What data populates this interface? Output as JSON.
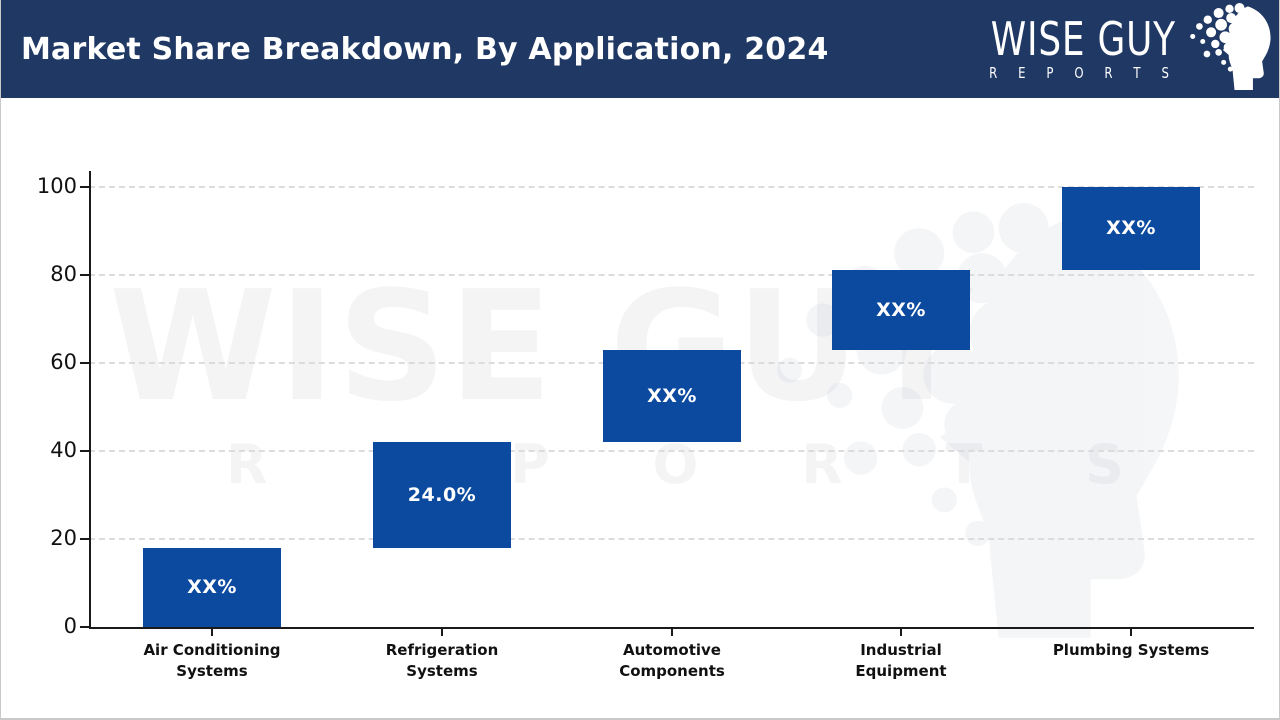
{
  "header": {
    "title": "Market Share Breakdown, By Application, 2024",
    "logo": {
      "name": "WISE GUY",
      "sub": "R E P O R T S"
    }
  },
  "watermark": {
    "line1": "WISE GUY",
    "line2": "R E P O R T S"
  },
  "colors": {
    "header_bg": "#1f3864",
    "bar": "#0b4a9e",
    "bar_label": "#ffffff",
    "axis": "#1a1a1a",
    "grid": "#dcdcdc",
    "page_bg": "#ffffff"
  },
  "chart_data": {
    "type": "bar",
    "subtype": "floating-segment-waterfall",
    "title": "Market Share Breakdown, By Application, 2024",
    "unit": "%",
    "ylim": [
      0,
      100
    ],
    "yticks": [
      0,
      20,
      40,
      60,
      80,
      100
    ],
    "grid": "horizontal dashed at yticks",
    "legend": "none",
    "bar_color": "#0b4a9e",
    "categories": [
      "Air Conditioning Systems",
      "Refrigeration Systems",
      "Automotive Components",
      "Industrial Equipment",
      "Plumbing Systems"
    ],
    "category_lines": [
      [
        "Air Conditioning",
        "Systems"
      ],
      [
        "Refrigeration",
        "Systems"
      ],
      [
        "Automotive",
        "Components"
      ],
      [
        "Industrial",
        "Equipment"
      ],
      [
        "Plumbing Systems"
      ]
    ],
    "bars": [
      {
        "category": "Air Conditioning Systems",
        "start": 0,
        "end": 18,
        "value": 18,
        "label": "XX%"
      },
      {
        "category": "Refrigeration Systems",
        "start": 18,
        "end": 42,
        "value": 24,
        "label": "24.0%"
      },
      {
        "category": "Automotive Components",
        "start": 42,
        "end": 63,
        "value": 21,
        "label": "XX%"
      },
      {
        "category": "Industrial Equipment",
        "start": 63,
        "end": 81,
        "value": 18,
        "label": "XX%"
      },
      {
        "category": "Plumbing Systems",
        "start": 81,
        "end": 100,
        "value": 19,
        "label": "XX%"
      }
    ]
  }
}
